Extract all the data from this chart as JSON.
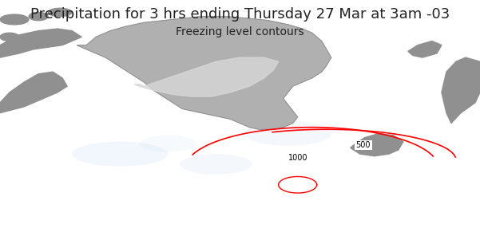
{
  "title": "Precipitation for 3 hrs ending Thursday 27 Mar at 3am -03",
  "subtitle": "Freezing level contours",
  "title_fontsize": 13,
  "subtitle_fontsize": 10,
  "title_color": "#222222",
  "bg_color": "#ffffff",
  "map_bg": "#add8e6",
  "contour_labels": [
    "1000",
    "500"
  ],
  "contour_color": "#ff0000"
}
